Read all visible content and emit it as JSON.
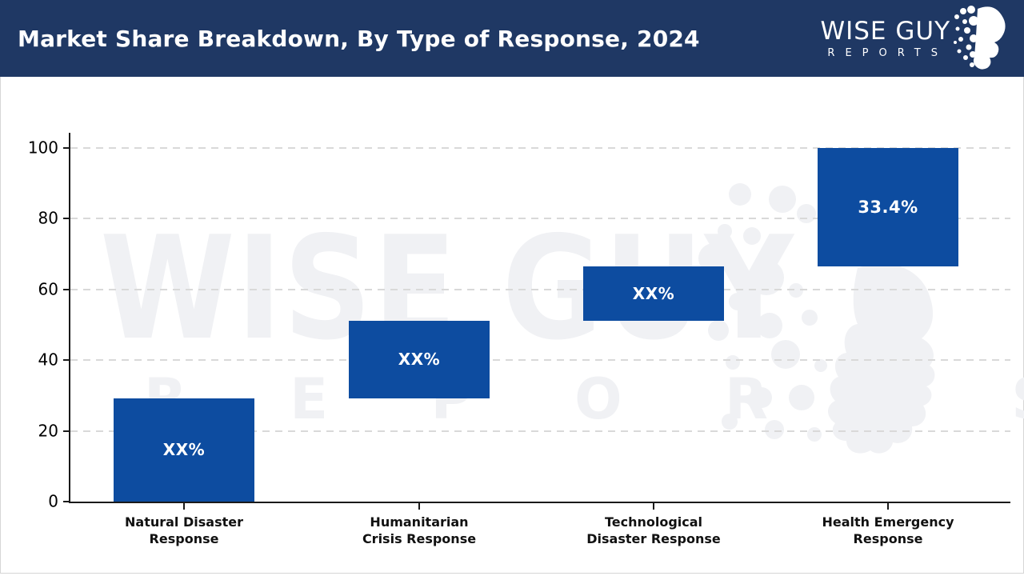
{
  "header": {
    "title": "Market Share Breakdown, By Type of Response, 2024",
    "background_color": "#1f3864",
    "logo": {
      "line1": "WISE GUY",
      "line2": "REPORTS",
      "face_icon": "dotted-face-profile"
    }
  },
  "watermark": {
    "line1": "WISE GUY",
    "line2": "R E P O R T S",
    "face_icon": "dotted-face-profile"
  },
  "chart_data": {
    "type": "bar",
    "subtype": "waterfall",
    "title": "Market Share Breakdown, By Type of Response, 2024",
    "categories": [
      "Natural Disaster Response",
      "Humanitarian Crisis Response",
      "Technological Disaster Response",
      "Health Emergency Response"
    ],
    "category_lines": [
      "Natural Disaster\nResponse",
      "Humanitarian\nCrisis Response",
      "Technological\nDisaster Response",
      "Health Emergency\nResponse"
    ],
    "segments": [
      {
        "category": "Natural Disaster Response",
        "start": 0,
        "end": 29.2,
        "value": 29.2,
        "label": "XX%"
      },
      {
        "category": "Humanitarian Crisis Response",
        "start": 29.2,
        "end": 51.2,
        "value": 22.0,
        "label": "XX%"
      },
      {
        "category": "Technological Disaster Response",
        "start": 51.2,
        "end": 66.6,
        "value": 15.4,
        "label": "XX%"
      },
      {
        "category": "Health Emergency Response",
        "start": 66.6,
        "end": 100,
        "value": 33.4,
        "label": "33.4%"
      }
    ],
    "yticks": [
      0,
      20,
      40,
      60,
      80,
      100
    ],
    "ylim": [
      0,
      104
    ],
    "xlabel": "",
    "ylabel": "",
    "grid": true,
    "grid_style": "dashed",
    "legend": false,
    "bar_color": "#0d4ca0",
    "label_color": "#ffffff"
  }
}
